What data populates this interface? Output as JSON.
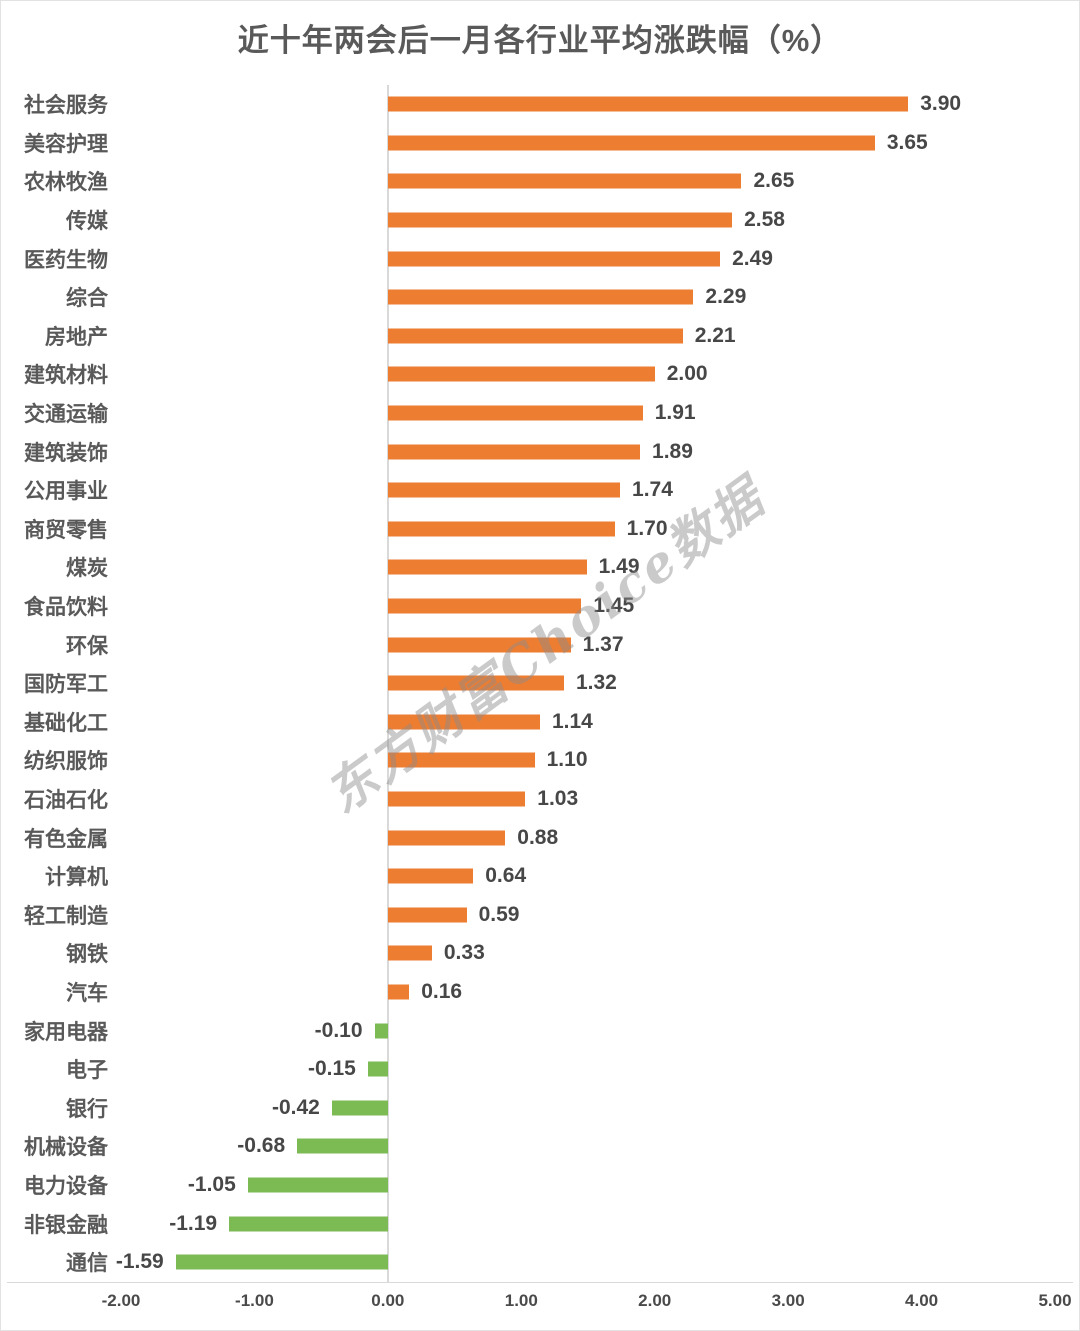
{
  "title": "近十年两会后一月各行业平均涨跌幅（%）",
  "watermark": "东方财富Choice数据",
  "colors": {
    "positive_bar": "#ED7D31",
    "negative_bar": "#7CBA53",
    "title_text": "#595959",
    "category_text": "#595959",
    "value_text": "#474747",
    "axis_text": "#4A4A4A",
    "axis_line": "#D9D9D9",
    "watermark_text": "#8C8C8C",
    "background": "#FFFFFF"
  },
  "chart_data": {
    "type": "bar",
    "orientation": "horizontal",
    "title": "近十年两会后一月各行业平均涨跌幅（%）",
    "categories": [
      "社会服务",
      "美容护理",
      "农林牧渔",
      "传媒",
      "医药生物",
      "综合",
      "房地产",
      "建筑材料",
      "交通运输",
      "建筑装饰",
      "公用事业",
      "商贸零售",
      "煤炭",
      "食品饮料",
      "环保",
      "国防军工",
      "基础化工",
      "纺织服饰",
      "石油石化",
      "有色金属",
      "计算机",
      "轻工制造",
      "钢铁",
      "汽车",
      "家用电器",
      "电子",
      "银行",
      "机械设备",
      "电力设备",
      "非银金融",
      "通信"
    ],
    "values": [
      3.9,
      3.65,
      2.65,
      2.58,
      2.49,
      2.29,
      2.21,
      2.0,
      1.91,
      1.89,
      1.74,
      1.7,
      1.49,
      1.45,
      1.37,
      1.32,
      1.14,
      1.1,
      1.03,
      0.88,
      0.64,
      0.59,
      0.33,
      0.16,
      -0.1,
      -0.15,
      -0.42,
      -0.68,
      -1.05,
      -1.19,
      -1.59
    ],
    "value_label_decimals": 2,
    "xlim": [
      -2.0,
      5.0
    ],
    "x_ticks": [
      -2,
      -1,
      0,
      1,
      2,
      3,
      4,
      5
    ],
    "x_tick_labels": [
      "-2.00",
      "-1.00",
      "0.00",
      "1.00",
      "2.00",
      "3.00",
      "4.00",
      "5.00"
    ],
    "grid": false,
    "legend": false,
    "data_labels": true
  }
}
